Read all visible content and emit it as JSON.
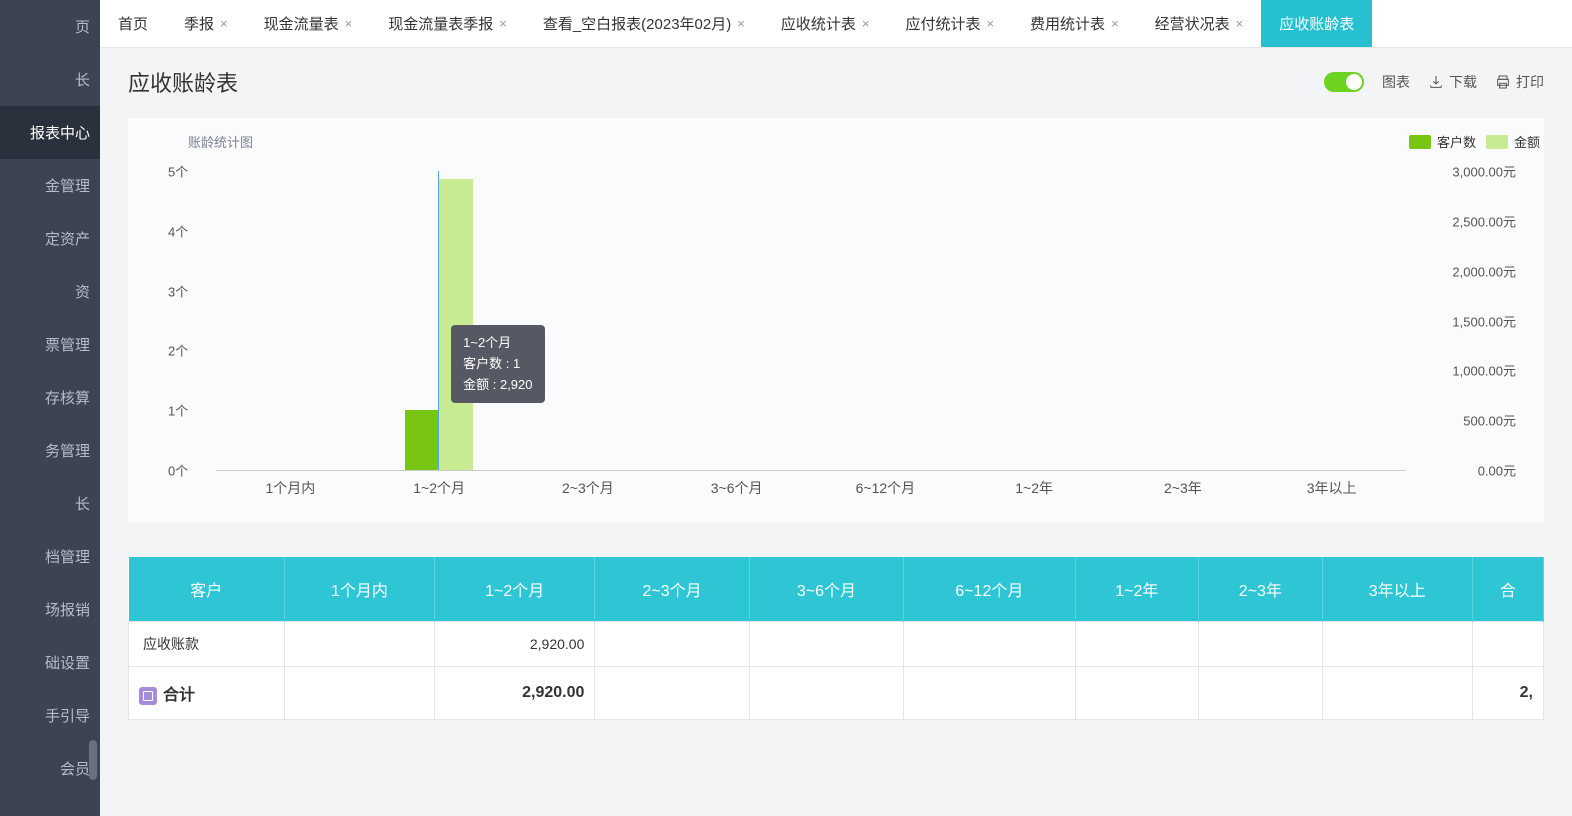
{
  "sidebar": {
    "items": [
      {
        "label": "页"
      },
      {
        "label": "长"
      },
      {
        "label": "报表中心",
        "active": true
      },
      {
        "label": "金管理"
      },
      {
        "label": "定资产"
      },
      {
        "label": "资"
      },
      {
        "label": "票管理"
      },
      {
        "label": "存核算"
      },
      {
        "label": "务管理"
      },
      {
        "label": "长"
      },
      {
        "label": "档管理"
      },
      {
        "label": "场报销"
      },
      {
        "label": "础设置"
      },
      {
        "label": "手引导"
      },
      {
        "label": "会员"
      }
    ]
  },
  "tabs": [
    {
      "label": "首页",
      "closeable": false
    },
    {
      "label": "季报",
      "closeable": true
    },
    {
      "label": "现金流量表",
      "closeable": true
    },
    {
      "label": "现金流量表季报",
      "closeable": true
    },
    {
      "label": "查看_空白报表(2023年02月)",
      "closeable": true
    },
    {
      "label": "应收统计表",
      "closeable": true
    },
    {
      "label": "应付统计表",
      "closeable": true
    },
    {
      "label": "费用统计表",
      "closeable": true
    },
    {
      "label": "经营状况表",
      "closeable": true
    },
    {
      "label": "应收账龄表",
      "closeable": false,
      "active": true
    }
  ],
  "page": {
    "title": "应收账龄表",
    "toggle_label": "图表",
    "download_label": "下载",
    "print_label": "打印"
  },
  "chart": {
    "title": "账龄统计图",
    "type": "bar-dual-axis",
    "categories": [
      "1个月内",
      "1~2个月",
      "2~3个月",
      "3~6个月",
      "6~12个月",
      "1~2年",
      "2~3年",
      "3年以上"
    ],
    "series": [
      {
        "name": "客户数",
        "color": "#79c612",
        "axis": "left",
        "values": [
          0,
          1,
          0,
          0,
          0,
          0,
          0,
          0
        ]
      },
      {
        "name": "金额",
        "color": "#c8eb91",
        "axis": "right",
        "values": [
          0,
          2920,
          0,
          0,
          0,
          0,
          0,
          0
        ]
      }
    ],
    "y_left": {
      "min": 0,
      "max": 5,
      "step": 1,
      "suffix": "个"
    },
    "y_right": {
      "min": 0,
      "max": 3000,
      "step": 500,
      "suffix": "元",
      "decimals": 2
    },
    "tooltip": {
      "category": "1~2个月",
      "lines": [
        "客户数 : 1",
        "金额 : 2,920"
      ]
    },
    "crosshair_at": 1,
    "colors": {
      "grid": "#e8e8e8",
      "axis": "#cccccc",
      "text": "#555555",
      "tooltip_bg": "#565964"
    }
  },
  "table": {
    "columns": [
      "客户",
      "1个月内",
      "1~2个月",
      "2~3个月",
      "3~6个月",
      "6~12个月",
      "1~2年",
      "2~3年",
      "3年以上",
      "合"
    ],
    "rows": [
      {
        "label": "应收账款",
        "cells": [
          "",
          "2,920.00",
          "",
          "",
          "",
          "",
          "",
          "",
          ""
        ]
      }
    ],
    "total": {
      "label": "合计",
      "cells": [
        "",
        "2,920.00",
        "",
        "",
        "",
        "",
        "",
        "",
        "2,"
      ]
    }
  }
}
